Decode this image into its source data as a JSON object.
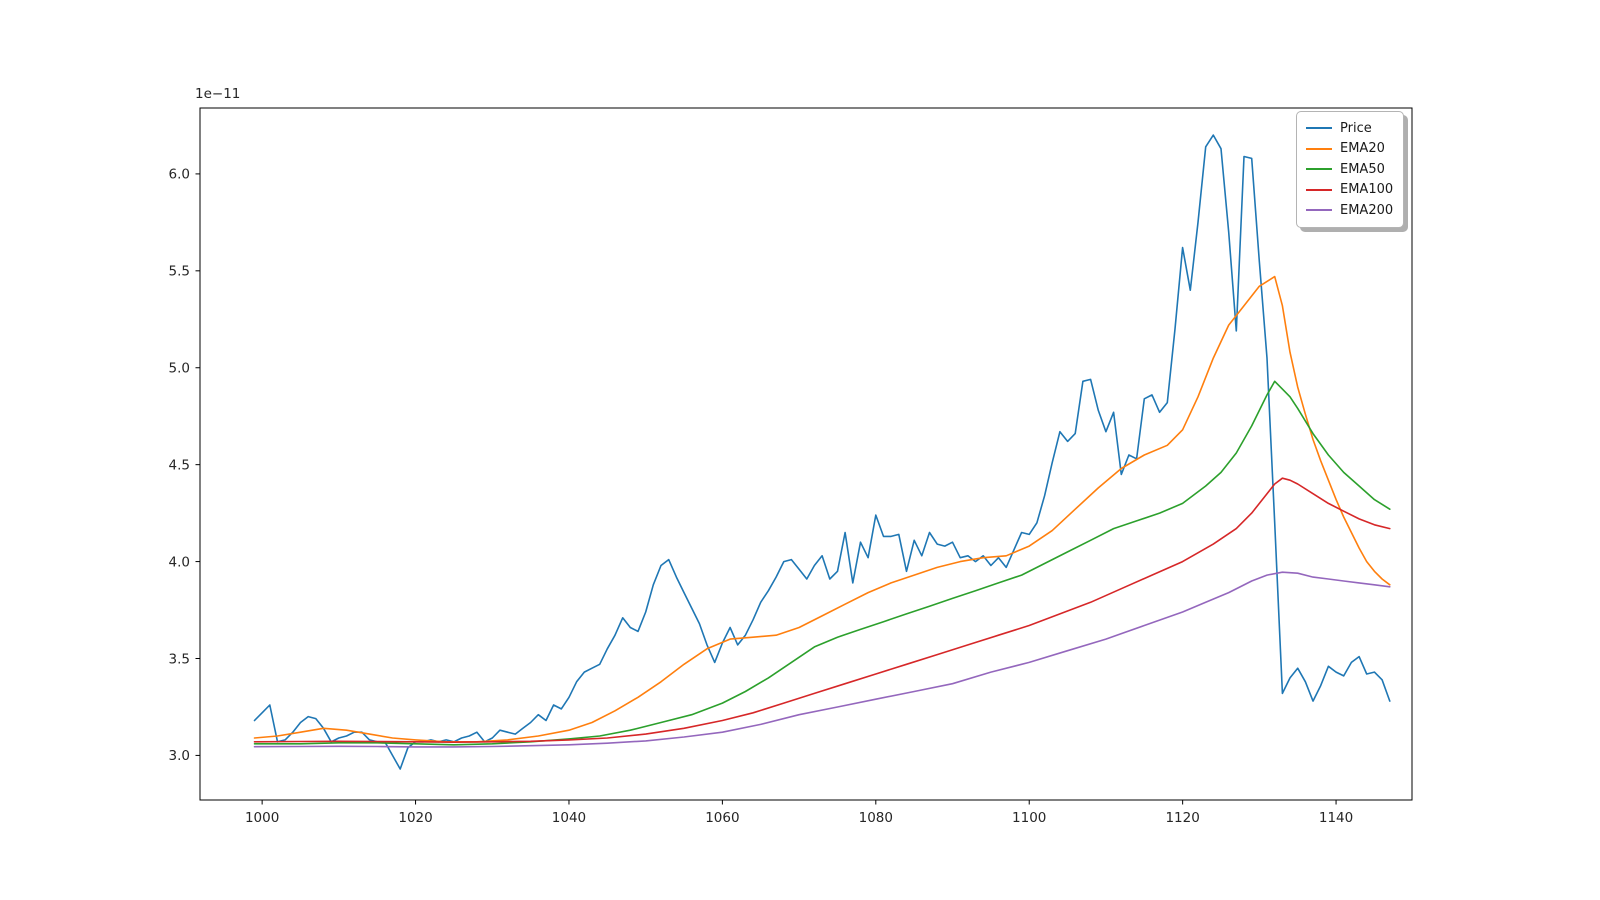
{
  "chart_data": {
    "type": "line",
    "title": "",
    "xlabel": "",
    "ylabel": "",
    "offset_label": "1e−11",
    "grid": false,
    "xlim": [
      991.9,
      1149.9
    ],
    "ylim": [
      2.77,
      6.34
    ],
    "x_ticks": [
      1000,
      1020,
      1040,
      1060,
      1080,
      1100,
      1120,
      1140
    ],
    "x_tick_labels": [
      "1000",
      "1020",
      "1040",
      "1060",
      "1080",
      "1100",
      "1120",
      "1140"
    ],
    "y_ticks": [
      3.0,
      3.5,
      4.0,
      4.5,
      5.0,
      5.5,
      6.0
    ],
    "y_tick_labels": [
      "3.0",
      "3.5",
      "4.0",
      "4.5",
      "5.0",
      "5.5",
      "6.0"
    ],
    "value_scale": "1e-11",
    "legend": {
      "position": "upper right",
      "entries": [
        {
          "label": "Price",
          "color": "#1f77b4"
        },
        {
          "label": "EMA20",
          "color": "#ff7f0e"
        },
        {
          "label": "EMA50",
          "color": "#2ca02c"
        },
        {
          "label": "EMA100",
          "color": "#d62728"
        },
        {
          "label": "EMA200",
          "color": "#9467bd"
        }
      ]
    },
    "series": [
      {
        "name": "Price",
        "color": "#1f77b4",
        "x": [
          999,
          1000,
          1001,
          1002,
          1003,
          1004,
          1005,
          1006,
          1007,
          1008,
          1009,
          1010,
          1011,
          1012,
          1013,
          1014,
          1015,
          1016,
          1017,
          1018,
          1019,
          1020,
          1021,
          1022,
          1023,
          1024,
          1025,
          1026,
          1027,
          1028,
          1029,
          1030,
          1031,
          1032,
          1033,
          1034,
          1035,
          1036,
          1037,
          1038,
          1039,
          1040,
          1041,
          1042,
          1043,
          1044,
          1045,
          1046,
          1047,
          1048,
          1049,
          1050,
          1051,
          1052,
          1053,
          1054,
          1055,
          1056,
          1057,
          1058,
          1059,
          1060,
          1061,
          1062,
          1063,
          1064,
          1065,
          1066,
          1067,
          1068,
          1069,
          1070,
          1071,
          1072,
          1073,
          1074,
          1075,
          1076,
          1077,
          1078,
          1079,
          1080,
          1081,
          1082,
          1083,
          1084,
          1085,
          1086,
          1087,
          1088,
          1089,
          1090,
          1091,
          1092,
          1093,
          1094,
          1095,
          1096,
          1097,
          1098,
          1099,
          1100,
          1101,
          1102,
          1103,
          1104,
          1105,
          1106,
          1107,
          1108,
          1109,
          1110,
          1111,
          1112,
          1113,
          1114,
          1115,
          1116,
          1117,
          1118,
          1119,
          1120,
          1121,
          1122,
          1123,
          1124,
          1125,
          1126,
          1127,
          1128,
          1129,
          1130,
          1131,
          1132,
          1133,
          1134,
          1135,
          1136,
          1137,
          1138,
          1139,
          1140,
          1141,
          1142,
          1143,
          1144,
          1145,
          1146,
          1147
        ],
        "values": [
          3.18,
          3.22,
          3.26,
          3.07,
          3.08,
          3.12,
          3.17,
          3.2,
          3.19,
          3.14,
          3.07,
          3.09,
          3.1,
          3.12,
          3.12,
          3.08,
          3.07,
          3.07,
          3.0,
          2.93,
          3.04,
          3.07,
          3.07,
          3.08,
          3.07,
          3.08,
          3.07,
          3.09,
          3.1,
          3.12,
          3.07,
          3.09,
          3.13,
          3.12,
          3.11,
          3.14,
          3.17,
          3.21,
          3.18,
          3.26,
          3.24,
          3.3,
          3.38,
          3.43,
          3.45,
          3.47,
          3.55,
          3.62,
          3.71,
          3.66,
          3.64,
          3.74,
          3.88,
          3.98,
          4.01,
          3.92,
          3.84,
          3.76,
          3.68,
          3.57,
          3.48,
          3.58,
          3.66,
          3.57,
          3.62,
          3.7,
          3.79,
          3.85,
          3.92,
          4.0,
          4.01,
          3.96,
          3.91,
          3.98,
          4.03,
          3.91,
          3.95,
          4.15,
          3.89,
          4.1,
          4.02,
          4.24,
          4.13,
          4.13,
          4.14,
          3.95,
          4.11,
          4.03,
          4.15,
          4.09,
          4.08,
          4.1,
          4.02,
          4.03,
          4.0,
          4.03,
          3.98,
          4.02,
          3.97,
          4.06,
          4.15,
          4.14,
          4.2,
          4.34,
          4.51,
          4.67,
          4.62,
          4.66,
          4.93,
          4.94,
          4.78,
          4.67,
          4.77,
          4.45,
          4.55,
          4.53,
          4.84,
          4.86,
          4.77,
          4.82,
          5.2,
          5.62,
          5.4,
          5.75,
          6.14,
          6.2,
          6.13,
          5.7,
          5.19,
          6.09,
          6.08,
          5.55,
          5.05,
          4.2,
          3.32,
          3.4,
          3.45,
          3.38,
          3.28,
          3.36,
          3.46,
          3.43,
          3.41,
          3.48,
          3.51,
          3.42,
          3.43,
          3.39,
          3.28
        ]
      },
      {
        "name": "EMA20",
        "color": "#ff7f0e",
        "x": [
          999,
          1002,
          1005,
          1008,
          1011,
          1014,
          1017,
          1020,
          1024,
          1028,
          1032,
          1036,
          1040,
          1043,
          1046,
          1049,
          1052,
          1055,
          1058,
          1061,
          1064,
          1067,
          1070,
          1073,
          1076,
          1079,
          1082,
          1085,
          1088,
          1091,
          1094,
          1097,
          1100,
          1103,
          1106,
          1109,
          1112,
          1115,
          1118,
          1120,
          1122,
          1124,
          1126,
          1128,
          1130,
          1132,
          1133,
          1134,
          1135,
          1136,
          1137,
          1138,
          1139,
          1140,
          1141,
          1142,
          1143,
          1144,
          1145,
          1146,
          1147
        ],
        "values": [
          3.09,
          3.1,
          3.12,
          3.14,
          3.13,
          3.11,
          3.09,
          3.08,
          3.07,
          3.07,
          3.08,
          3.1,
          3.13,
          3.17,
          3.23,
          3.3,
          3.38,
          3.47,
          3.55,
          3.6,
          3.61,
          3.62,
          3.66,
          3.72,
          3.78,
          3.84,
          3.89,
          3.93,
          3.97,
          4.0,
          4.02,
          4.03,
          4.08,
          4.16,
          4.27,
          4.38,
          4.48,
          4.55,
          4.6,
          4.68,
          4.85,
          5.05,
          5.22,
          5.32,
          5.42,
          5.47,
          5.32,
          5.08,
          4.9,
          4.76,
          4.63,
          4.52,
          4.42,
          4.32,
          4.23,
          4.15,
          4.07,
          4.0,
          3.95,
          3.91,
          3.88
        ]
      },
      {
        "name": "EMA50",
        "color": "#2ca02c",
        "x": [
          999,
          1005,
          1010,
          1015,
          1020,
          1025,
          1030,
          1035,
          1040,
          1044,
          1048,
          1052,
          1056,
          1060,
          1063,
          1066,
          1069,
          1072,
          1075,
          1078,
          1081,
          1084,
          1087,
          1090,
          1093,
          1096,
          1099,
          1102,
          1105,
          1108,
          1111,
          1114,
          1117,
          1120,
          1123,
          1125,
          1127,
          1129,
          1131,
          1132,
          1133,
          1134,
          1135,
          1137,
          1139,
          1141,
          1143,
          1145,
          1147
        ],
        "values": [
          3.06,
          3.06,
          3.065,
          3.065,
          3.06,
          3.055,
          3.06,
          3.07,
          3.085,
          3.1,
          3.13,
          3.17,
          3.21,
          3.27,
          3.33,
          3.4,
          3.48,
          3.56,
          3.61,
          3.65,
          3.69,
          3.73,
          3.77,
          3.81,
          3.85,
          3.89,
          3.93,
          3.99,
          4.05,
          4.11,
          4.17,
          4.21,
          4.25,
          4.3,
          4.39,
          4.46,
          4.56,
          4.7,
          4.86,
          4.93,
          4.89,
          4.85,
          4.79,
          4.66,
          4.55,
          4.46,
          4.39,
          4.32,
          4.27
        ]
      },
      {
        "name": "EMA100",
        "color": "#d62728",
        "x": [
          999,
          1005,
          1010,
          1015,
          1020,
          1025,
          1030,
          1035,
          1040,
          1045,
          1050,
          1055,
          1060,
          1064,
          1068,
          1072,
          1076,
          1080,
          1084,
          1088,
          1092,
          1096,
          1100,
          1104,
          1108,
          1112,
          1116,
          1120,
          1124,
          1127,
          1129,
          1131,
          1132,
          1133,
          1134,
          1135,
          1137,
          1139,
          1141,
          1143,
          1145,
          1147
        ],
        "values": [
          3.07,
          3.072,
          3.073,
          3.072,
          3.07,
          3.068,
          3.07,
          3.073,
          3.08,
          3.09,
          3.11,
          3.14,
          3.18,
          3.22,
          3.27,
          3.32,
          3.37,
          3.42,
          3.47,
          3.52,
          3.57,
          3.62,
          3.67,
          3.73,
          3.79,
          3.86,
          3.93,
          4.0,
          4.09,
          4.17,
          4.25,
          4.35,
          4.4,
          4.43,
          4.42,
          4.4,
          4.35,
          4.3,
          4.26,
          4.22,
          4.19,
          4.17
        ]
      },
      {
        "name": "EMA200",
        "color": "#9467bd",
        "x": [
          999,
          1005,
          1010,
          1015,
          1020,
          1025,
          1030,
          1035,
          1040,
          1045,
          1050,
          1055,
          1060,
          1065,
          1070,
          1075,
          1080,
          1085,
          1090,
          1095,
          1100,
          1105,
          1110,
          1115,
          1120,
          1123,
          1126,
          1129,
          1131,
          1133,
          1135,
          1137,
          1139,
          1141,
          1143,
          1145,
          1147
        ],
        "values": [
          3.045,
          3.046,
          3.047,
          3.046,
          3.044,
          3.044,
          3.046,
          3.05,
          3.055,
          3.063,
          3.075,
          3.095,
          3.12,
          3.16,
          3.21,
          3.25,
          3.29,
          3.33,
          3.37,
          3.43,
          3.48,
          3.54,
          3.6,
          3.67,
          3.74,
          3.79,
          3.84,
          3.9,
          3.93,
          3.945,
          3.94,
          3.92,
          3.91,
          3.9,
          3.89,
          3.88,
          3.87
        ]
      }
    ]
  }
}
